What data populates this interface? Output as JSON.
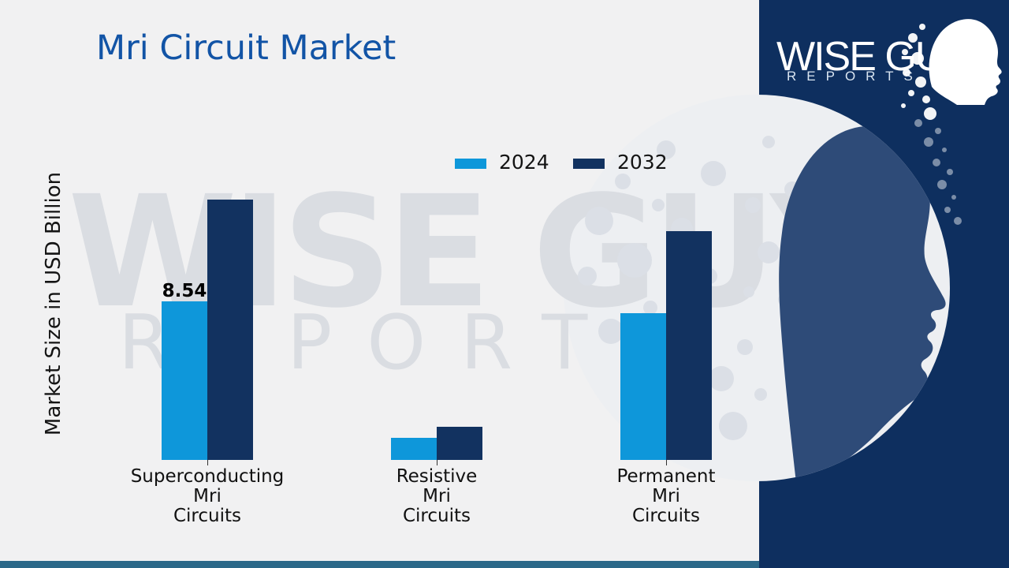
{
  "page": {
    "title": "Mri Circuit Market"
  },
  "watermark": {
    "line1": "WISE GUY",
    "line2": "REPORTS"
  },
  "logo": {
    "line1": "WISE GUY",
    "line2": "REPORTS"
  },
  "colors": {
    "accent_2024": "#0e97da",
    "accent_2032": "#123260",
    "title_blue": "#1254a6",
    "brand_panel_navy": "#0e2f5f",
    "footer_teal": "#2a6888",
    "watermark_gray": "#dadde2",
    "background": "#f1f1f2"
  },
  "chart_data": {
    "type": "bar",
    "title": "Mri Circuit Market",
    "xlabel": "",
    "ylabel": "Market Size in USD Billion",
    "categories": [
      "Superconducting Mri Circuits",
      "Resistive Mri Circuits",
      "Permanent Mri Circuits"
    ],
    "categories_lines": [
      [
        "Superconducting",
        "Mri",
        "Circuits"
      ],
      [
        "Resistive",
        "Mri",
        "Circuits"
      ],
      [
        "Permanent",
        "Mri",
        "Circuits"
      ]
    ],
    "series": [
      {
        "name": "2024",
        "color": "#0e97da",
        "values": [
          8.54,
          1.19,
          7.9
        ]
      },
      {
        "name": "2032",
        "color": "#123260",
        "values": [
          14.02,
          1.78,
          12.32
        ]
      }
    ],
    "data_labels_shown": [
      "8.54"
    ],
    "ylim": [
      0,
      15
    ],
    "grid": false,
    "legend_position": "top-center"
  }
}
